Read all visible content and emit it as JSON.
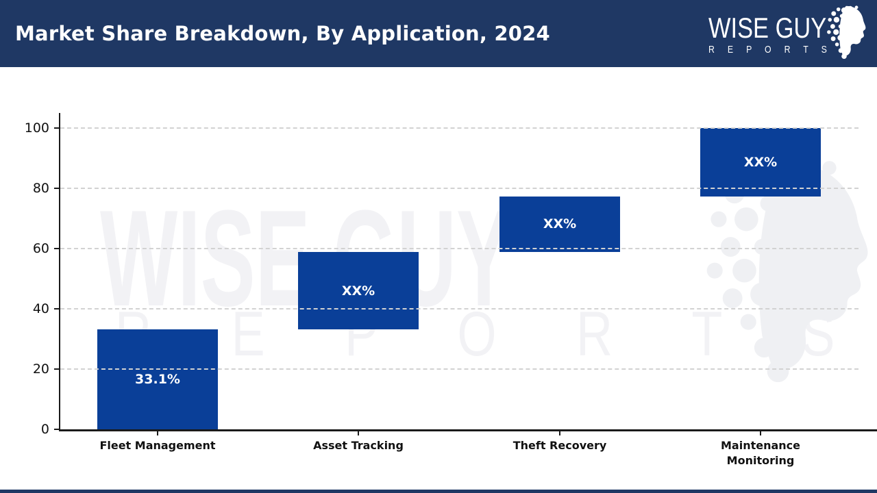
{
  "header": {
    "title": "Market Share Breakdown, By Application, 2024",
    "background_color": "#1f3864",
    "logo": {
      "wordmark": "WISE GUY",
      "subtext": "R E P O R T S"
    }
  },
  "watermark": {
    "wordmark": "WISE GUY",
    "subtext": "R E P O R T S"
  },
  "footer": {
    "background_color": "#1f3864"
  },
  "chart_data": {
    "type": "bar",
    "subtype": "waterfall",
    "title": "Market Share Breakdown, By Application, 2024",
    "categories": [
      "Fleet Management",
      "Asset Tracking",
      "Theft Recovery",
      "Maintenance Monitoring"
    ],
    "segments": [
      {
        "category": "Fleet Management",
        "start": 0,
        "end": 33.1,
        "label": "33.1%"
      },
      {
        "category": "Asset Tracking",
        "start": 33.1,
        "end": 58.9,
        "label": "XX%"
      },
      {
        "category": "Theft Recovery",
        "start": 58.9,
        "end": 77.3,
        "label": "XX%"
      },
      {
        "category": "Maintenance Monitoring",
        "start": 77.3,
        "end": 100,
        "label": "XX%"
      }
    ],
    "xlabel": "",
    "ylabel": "",
    "ylim": [
      0,
      100
    ],
    "yticks": [
      "0",
      "20",
      "40",
      "60",
      "80",
      "100"
    ],
    "grid": {
      "axis": "y",
      "style": "dashed",
      "color": "#d2d2d2",
      "drawn_above_bars": true
    },
    "legend": "none",
    "bar_color": "#0a3f98",
    "bar_label_color": "#ffffff",
    "axis_color": "#1a1a1a"
  }
}
